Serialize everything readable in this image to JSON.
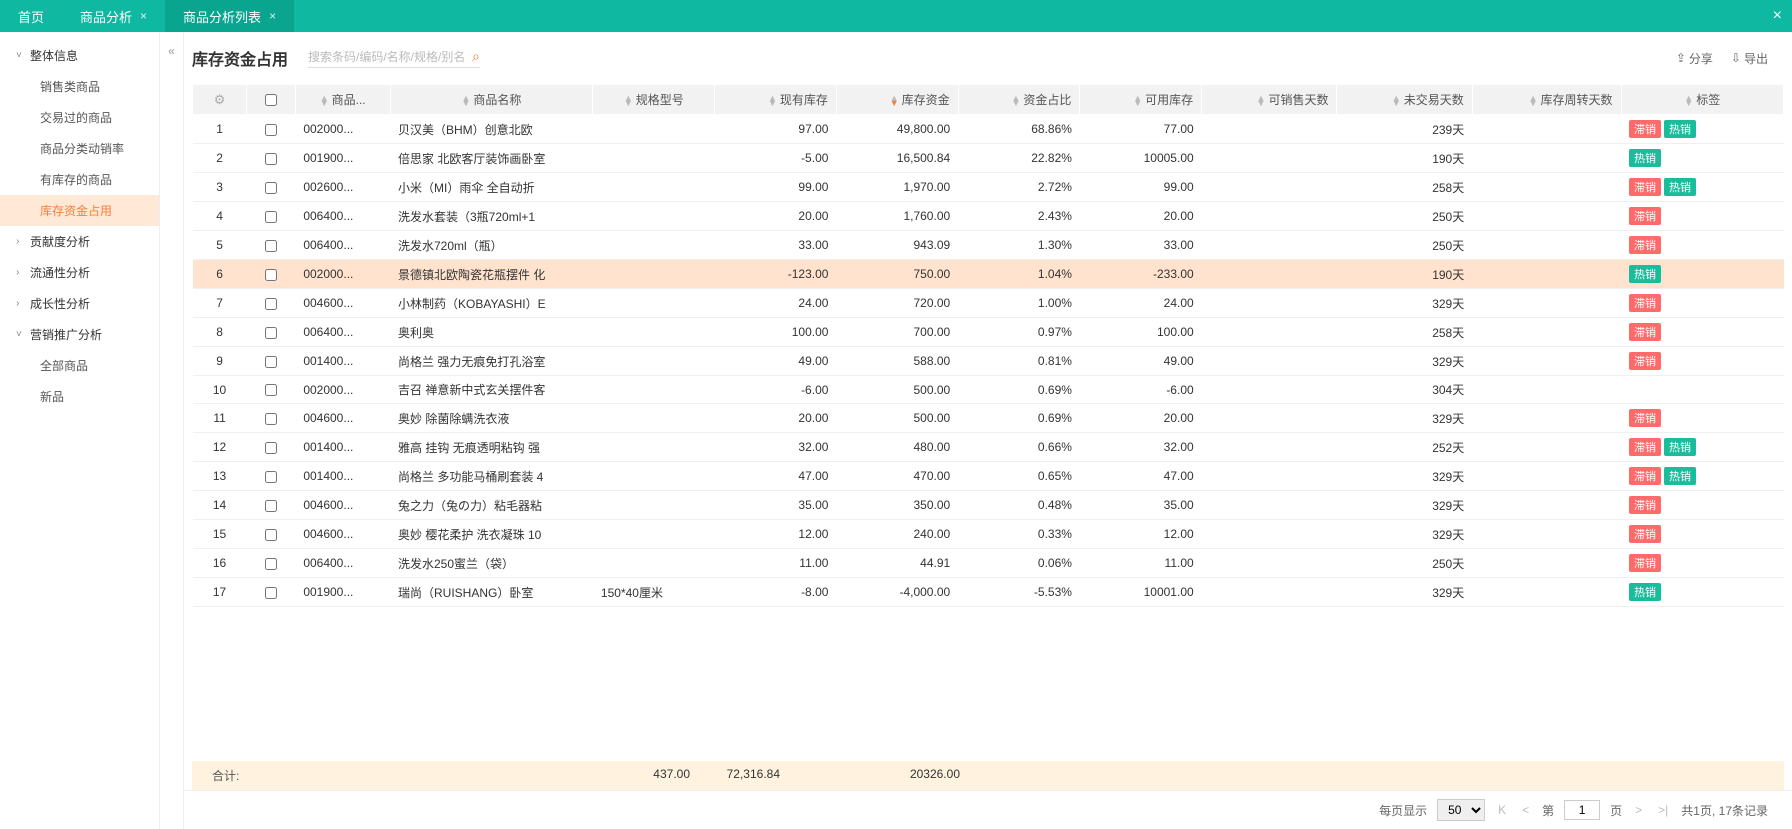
{
  "tabs": [
    {
      "label": "首页",
      "closable": false,
      "active": false
    },
    {
      "label": "商品分析",
      "closable": true,
      "active": false
    },
    {
      "label": "商品分析列表",
      "closable": true,
      "active": true
    }
  ],
  "sidebar": {
    "groups": [
      {
        "label": "整体信息",
        "expanded": true,
        "items": [
          {
            "label": "销售类商品",
            "active": false
          },
          {
            "label": "交易过的商品",
            "active": false
          },
          {
            "label": "商品分类动销率",
            "active": false
          },
          {
            "label": "有库存的商品",
            "active": false
          },
          {
            "label": "库存资金占用",
            "active": true
          }
        ]
      },
      {
        "label": "贡献度分析",
        "expanded": false,
        "items": []
      },
      {
        "label": "流通性分析",
        "expanded": false,
        "items": []
      },
      {
        "label": "成长性分析",
        "expanded": false,
        "items": []
      },
      {
        "label": "营销推广分析",
        "expanded": true,
        "items": [
          {
            "label": "全部商品",
            "active": false
          },
          {
            "label": "新品",
            "active": false
          }
        ]
      }
    ]
  },
  "page_title": "库存资金占用",
  "search_placeholder": "搜索条码/编码/名称/规格/别名",
  "actions": {
    "share": "分享",
    "export": "导出"
  },
  "columns": [
    "",
    "",
    "商品...",
    "商品名称",
    "规格型号",
    "现有库存",
    "库存资金",
    "资金占比",
    "可用库存",
    "可销售天数",
    "未交易天数",
    "库存周转天数",
    "标签"
  ],
  "sorted_col_index": 6,
  "rows": [
    {
      "idx": "1",
      "code": "002000...",
      "name": "贝汉美（BHM）创意北欧",
      "spec": "",
      "stock": "97.00",
      "fund": "49,800.00",
      "rate": "68.86%",
      "avail": "77.00",
      "sell": "",
      "notrade": "239天",
      "turn": "",
      "tags": [
        "滞销",
        "热销"
      ],
      "hl": false
    },
    {
      "idx": "2",
      "code": "001900...",
      "name": "倍思家 北欧客厅装饰画卧室",
      "spec": "",
      "stock": "-5.00",
      "fund": "16,500.84",
      "rate": "22.82%",
      "avail": "10005.00",
      "sell": "",
      "notrade": "190天",
      "turn": "",
      "tags": [
        "热销"
      ],
      "hl": false
    },
    {
      "idx": "3",
      "code": "002600...",
      "name": "小米（MI）雨伞 全自动折",
      "spec": "",
      "stock": "99.00",
      "fund": "1,970.00",
      "rate": "2.72%",
      "avail": "99.00",
      "sell": "",
      "notrade": "258天",
      "turn": "",
      "tags": [
        "滞销",
        "热销"
      ],
      "hl": false
    },
    {
      "idx": "4",
      "code": "006400...",
      "name": "洗发水套装（3瓶720ml+1",
      "spec": "",
      "stock": "20.00",
      "fund": "1,760.00",
      "rate": "2.43%",
      "avail": "20.00",
      "sell": "",
      "notrade": "250天",
      "turn": "",
      "tags": [
        "滞销"
      ],
      "hl": false
    },
    {
      "idx": "5",
      "code": "006400...",
      "name": "洗发水720ml（瓶）",
      "spec": "",
      "stock": "33.00",
      "fund": "943.09",
      "rate": "1.30%",
      "avail": "33.00",
      "sell": "",
      "notrade": "250天",
      "turn": "",
      "tags": [
        "滞销"
      ],
      "hl": false
    },
    {
      "idx": "6",
      "code": "002000...",
      "name": "景德镇北欧陶瓷花瓶摆件 化",
      "spec": "",
      "stock": "-123.00",
      "fund": "750.00",
      "rate": "1.04%",
      "avail": "-233.00",
      "sell": "",
      "notrade": "190天",
      "turn": "",
      "tags": [
        "热销"
      ],
      "hl": true
    },
    {
      "idx": "7",
      "code": "004600...",
      "name": "小林制药（KOBAYASHI）E",
      "spec": "",
      "stock": "24.00",
      "fund": "720.00",
      "rate": "1.00%",
      "avail": "24.00",
      "sell": "",
      "notrade": "329天",
      "turn": "",
      "tags": [
        "滞销"
      ],
      "hl": false
    },
    {
      "idx": "8",
      "code": "006400...",
      "name": "奥利奥",
      "spec": "",
      "stock": "100.00",
      "fund": "700.00",
      "rate": "0.97%",
      "avail": "100.00",
      "sell": "",
      "notrade": "258天",
      "turn": "",
      "tags": [
        "滞销"
      ],
      "hl": false
    },
    {
      "idx": "9",
      "code": "001400...",
      "name": "尚格兰 强力无痕免打孔浴室",
      "spec": "",
      "stock": "49.00",
      "fund": "588.00",
      "rate": "0.81%",
      "avail": "49.00",
      "sell": "",
      "notrade": "329天",
      "turn": "",
      "tags": [
        "滞销"
      ],
      "hl": false
    },
    {
      "idx": "10",
      "code": "002000...",
      "name": "吉召 禅意新中式玄关摆件客",
      "spec": "",
      "stock": "-6.00",
      "fund": "500.00",
      "rate": "0.69%",
      "avail": "-6.00",
      "sell": "",
      "notrade": "304天",
      "turn": "",
      "tags": [],
      "hl": false
    },
    {
      "idx": "11",
      "code": "004600...",
      "name": "奥妙 除菌除螨洗衣液",
      "spec": "",
      "stock": "20.00",
      "fund": "500.00",
      "rate": "0.69%",
      "avail": "20.00",
      "sell": "",
      "notrade": "329天",
      "turn": "",
      "tags": [
        "滞销"
      ],
      "hl": false
    },
    {
      "idx": "12",
      "code": "001400...",
      "name": "雅高 挂钩 无痕透明粘钩 强",
      "spec": "",
      "stock": "32.00",
      "fund": "480.00",
      "rate": "0.66%",
      "avail": "32.00",
      "sell": "",
      "notrade": "252天",
      "turn": "",
      "tags": [
        "滞销",
        "热销"
      ],
      "hl": false
    },
    {
      "idx": "13",
      "code": "001400...",
      "name": "尚格兰 多功能马桶刷套装 4",
      "spec": "",
      "stock": "47.00",
      "fund": "470.00",
      "rate": "0.65%",
      "avail": "47.00",
      "sell": "",
      "notrade": "329天",
      "turn": "",
      "tags": [
        "滞销",
        "热销"
      ],
      "hl": false
    },
    {
      "idx": "14",
      "code": "004600...",
      "name": "兔之力（兔の力）粘毛器粘",
      "spec": "",
      "stock": "35.00",
      "fund": "350.00",
      "rate": "0.48%",
      "avail": "35.00",
      "sell": "",
      "notrade": "329天",
      "turn": "",
      "tags": [
        "滞销"
      ],
      "hl": false
    },
    {
      "idx": "15",
      "code": "004600...",
      "name": "奥妙 樱花柔护 洗衣凝珠 10",
      "spec": "",
      "stock": "12.00",
      "fund": "240.00",
      "rate": "0.33%",
      "avail": "12.00",
      "sell": "",
      "notrade": "329天",
      "turn": "",
      "tags": [
        "滞销"
      ],
      "hl": false
    },
    {
      "idx": "16",
      "code": "006400...",
      "name": "洗发水250蜜兰（袋）",
      "spec": "",
      "stock": "11.00",
      "fund": "44.91",
      "rate": "0.06%",
      "avail": "11.00",
      "sell": "",
      "notrade": "250天",
      "turn": "",
      "tags": [
        "滞销"
      ],
      "hl": false
    },
    {
      "idx": "17",
      "code": "001900...",
      "name": "瑞尚（RUISHANG）卧室",
      "spec": "150*40厘米",
      "stock": "-8.00",
      "fund": "-4,000.00",
      "rate": "-5.53%",
      "avail": "10001.00",
      "sell": "",
      "notrade": "329天",
      "turn": "",
      "tags": [
        "热销"
      ],
      "hl": false
    }
  ],
  "totals": {
    "label": "合计:",
    "stock": "437.00",
    "fund": "72,316.84",
    "avail": "20326.00"
  },
  "pager": {
    "per_label": "每页显示",
    "per_value": "50",
    "page_label_a": "第",
    "page_value": "1",
    "page_label_b": "页",
    "summary": "共1页, 17条记录"
  },
  "tag_colors": {
    "滞销": "tag-red",
    "热销": "tag-teal"
  }
}
